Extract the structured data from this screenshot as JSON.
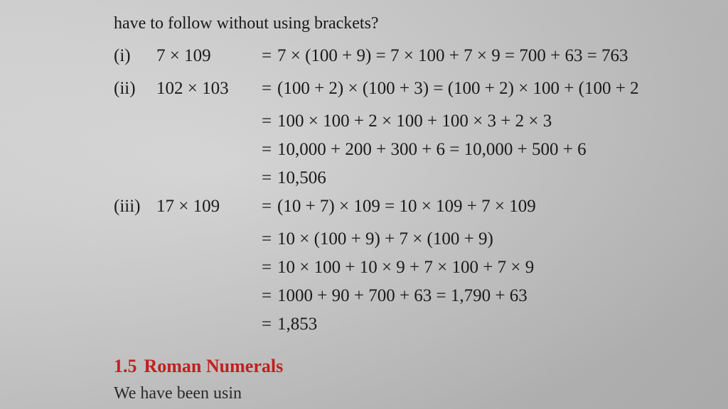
{
  "intro": "have to follow without using brackets?",
  "problems": {
    "i": {
      "roman": "(i)",
      "lhs": "7 × 109",
      "rhs": "7 × (100 + 9) = 7 × 100 + 7 × 9 = 700 + 63 = 763"
    },
    "ii": {
      "roman": "(ii)",
      "lhs": "102 × 103",
      "rhs1": "(100 + 2) × (100 + 3) = (100 + 2) × 100 + (100 + 2",
      "rhs2": "100 × 100 + 2 × 100 + 100 × 3 + 2 × 3",
      "rhs3": "10,000 + 200 + 300 + 6 = 10,000 + 500 + 6",
      "rhs4": "10,506"
    },
    "iii": {
      "roman": "(iii)",
      "lhs": "17 × 109",
      "rhs1": "(10 + 7) × 109 = 10 × 109 + 7 × 109",
      "rhs2": "10 × (100 + 9) + 7 × (100 + 9)",
      "rhs3": "10 × 100 + 10 × 9 + 7 × 100 + 7 × 9",
      "rhs4": "1000 + 90 + 700 + 63 = 1,790 + 63",
      "rhs5": "1,853"
    }
  },
  "section": {
    "num": "1.5",
    "title": "Roman Numerals"
  },
  "bottom_fragment": "We have been usin",
  "eq_sign": "=",
  "styling": {
    "background_gradient": [
      "#d8d8d8",
      "#c8c8c8",
      "#b8b8b8"
    ],
    "text_color": "#1a1a1a",
    "heading_color": "#c02020",
    "body_fontsize": 25,
    "intro_fontsize": 24,
    "heading_fontsize": 26,
    "font_family": "Times New Roman, serif",
    "line_height": 1.6,
    "roman_col_width": 60,
    "lhs_col_width": 140,
    "eq_col_width": 30
  }
}
